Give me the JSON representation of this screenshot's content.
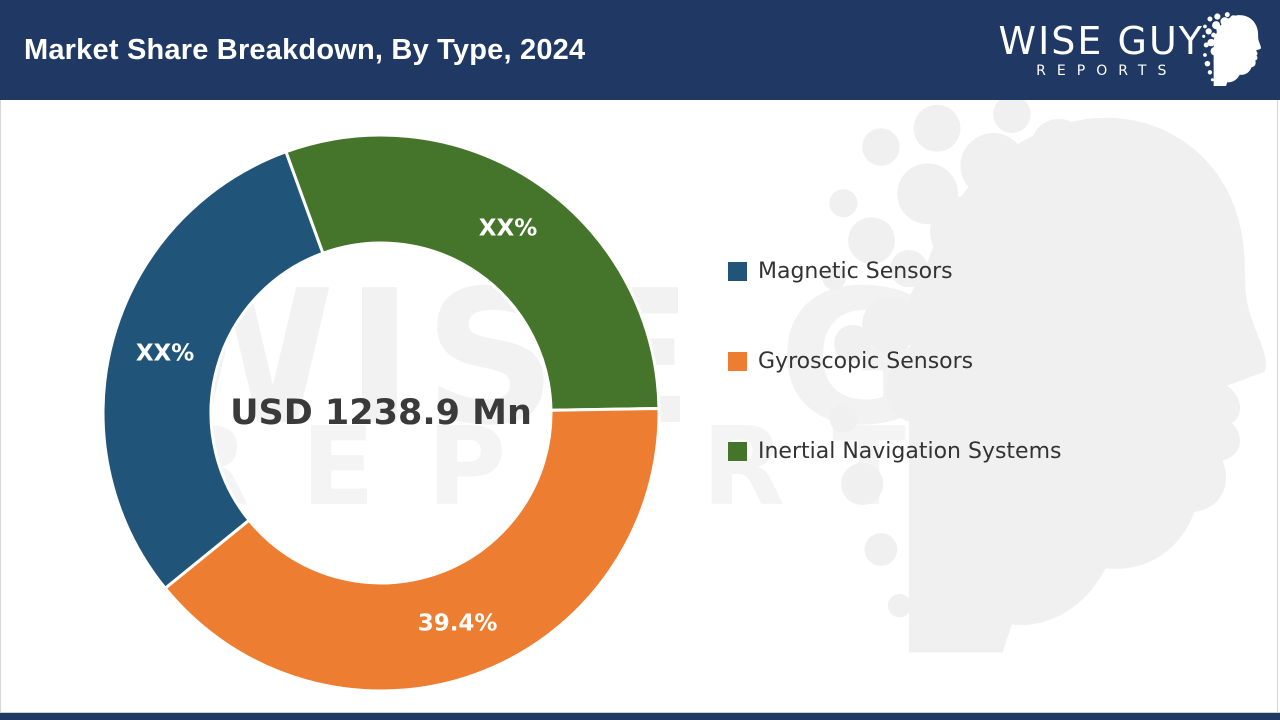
{
  "header": {
    "title": "Market Share Breakdown, By Type, 2024",
    "bg_color": "#1f3864",
    "logo": {
      "line1": "WISE GUY",
      "line2": "REPORTS"
    }
  },
  "watermark": {
    "line1": "WISE GUY",
    "line2": "REPORTS"
  },
  "chart_data": {
    "type": "pie",
    "donut": true,
    "title": "Market Share Breakdown, By Type, 2024",
    "center_label": "USD 1238.9 Mn",
    "start_angle_deg": -20,
    "legend_position": "right",
    "slices": [
      {
        "name": "Inertial Navigation Systems",
        "pct": 30.3,
        "label": "XX%",
        "color": "#44752a"
      },
      {
        "name": "Gyroscopic Sensors",
        "pct": 39.4,
        "label": "39.4%",
        "color": "#ed7d31"
      },
      {
        "name": "Magnetic Sensors",
        "pct": 30.3,
        "label": "XX%",
        "color": "#205579"
      }
    ],
    "legend": [
      {
        "name": "Magnetic Sensors",
        "color": "#205579"
      },
      {
        "name": "Gyroscopic Sensors",
        "color": "#ed7d31"
      },
      {
        "name": "Inertial Navigation Systems",
        "color": "#44752a"
      }
    ]
  }
}
